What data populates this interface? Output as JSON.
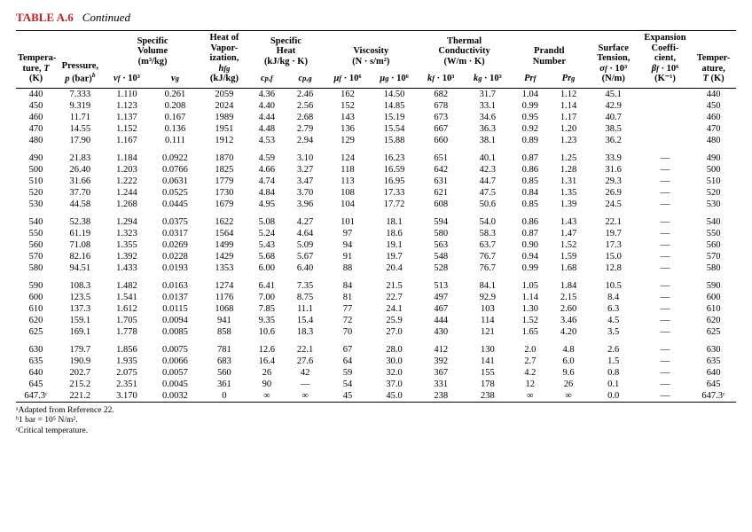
{
  "title": {
    "label": "TABLE A.6",
    "suffix": "Continued"
  },
  "header": {
    "row1": {
      "temp": "Tempera-\nture, T\n(K)",
      "pressure": "Pressure,\np (bar)ᵇ",
      "specvol": "Specific\nVolume\n(m³/kg)",
      "hvap": "Heat of\nVapor-\nization,\nh_fg\n(kJ/kg)",
      "spheat": "Specific\nHeat\n(kJ/kg · K)",
      "visc": "Viscosity\n(N · s/m²)",
      "thermc": "Thermal\nConductivity\n(W/m · K)",
      "prandtl": "Prandtl\nNumber",
      "surft": "Surface\nTension,\nσ_f · 10³\n(N/m)",
      "expan": "Expansion\nCoeffi-\ncient,\nβ_f · 10⁶\n(K⁻¹)",
      "temp2": "Temper-\nature,\nT (K)"
    },
    "row2": {
      "vf": "v_f · 10³",
      "vg": "v_g",
      "cpf": "c_p,f",
      "cpg": "c_p,g",
      "muf": "μ_f · 10⁶",
      "mug": "μ_g · 10⁶",
      "kf": "k_f · 10³",
      "kg": "k_g · 10³",
      "prf": "Pr_f",
      "prg": "Pr_g"
    }
  },
  "rows": [
    [
      "440",
      "7.333",
      "1.110",
      "0.261",
      "2059",
      "4.36",
      "2.46",
      "162",
      "14.50",
      "682",
      "31.7",
      "1.04",
      "1.12",
      "45.1",
      "",
      "440"
    ],
    [
      "450",
      "9.319",
      "1.123",
      "0.208",
      "2024",
      "4.40",
      "2.56",
      "152",
      "14.85",
      "678",
      "33.1",
      "0.99",
      "1.14",
      "42.9",
      "",
      "450"
    ],
    [
      "460",
      "11.71",
      "1.137",
      "0.167",
      "1989",
      "4.44",
      "2.68",
      "143",
      "15.19",
      "673",
      "34.6",
      "0.95",
      "1.17",
      "40.7",
      "",
      "460"
    ],
    [
      "470",
      "14.55",
      "1.152",
      "0.136",
      "1951",
      "4.48",
      "2.79",
      "136",
      "15.54",
      "667",
      "36.3",
      "0.92",
      "1.20",
      "38.5",
      "",
      "470"
    ],
    [
      "480",
      "17.90",
      "1.167",
      "0.111",
      "1912",
      "4.53",
      "2.94",
      "129",
      "15.88",
      "660",
      "38.1",
      "0.89",
      "1.23",
      "36.2",
      "",
      "480"
    ],
    [
      "490",
      "21.83",
      "1.184",
      "0.0922",
      "1870",
      "4.59",
      "3.10",
      "124",
      "16.23",
      "651",
      "40.1",
      "0.87",
      "1.25",
      "33.9",
      "—",
      "490"
    ],
    [
      "500",
      "26.40",
      "1.203",
      "0.0766",
      "1825",
      "4.66",
      "3.27",
      "118",
      "16.59",
      "642",
      "42.3",
      "0.86",
      "1.28",
      "31.6",
      "—",
      "500"
    ],
    [
      "510",
      "31.66",
      "1.222",
      "0.0631",
      "1779",
      "4.74",
      "3.47",
      "113",
      "16.95",
      "631",
      "44.7",
      "0.85",
      "1.31",
      "29.3",
      "—",
      "510"
    ],
    [
      "520",
      "37.70",
      "1.244",
      "0.0525",
      "1730",
      "4.84",
      "3.70",
      "108",
      "17.33",
      "621",
      "47.5",
      "0.84",
      "1.35",
      "26.9",
      "—",
      "520"
    ],
    [
      "530",
      "44.58",
      "1.268",
      "0.0445",
      "1679",
      "4.95",
      "3.96",
      "104",
      "17.72",
      "608",
      "50.6",
      "0.85",
      "1.39",
      "24.5",
      "—",
      "530"
    ],
    [
      "540",
      "52.38",
      "1.294",
      "0.0375",
      "1622",
      "5.08",
      "4.27",
      "101",
      "18.1",
      "594",
      "54.0",
      "0.86",
      "1.43",
      "22.1",
      "—",
      "540"
    ],
    [
      "550",
      "61.19",
      "1.323",
      "0.0317",
      "1564",
      "5.24",
      "4.64",
      "97",
      "18.6",
      "580",
      "58.3",
      "0.87",
      "1.47",
      "19.7",
      "—",
      "550"
    ],
    [
      "560",
      "71.08",
      "1.355",
      "0.0269",
      "1499",
      "5.43",
      "5.09",
      "94",
      "19.1",
      "563",
      "63.7",
      "0.90",
      "1.52",
      "17.3",
      "—",
      "560"
    ],
    [
      "570",
      "82.16",
      "1.392",
      "0.0228",
      "1429",
      "5.68",
      "5.67",
      "91",
      "19.7",
      "548",
      "76.7",
      "0.94",
      "1.59",
      "15.0",
      "—",
      "570"
    ],
    [
      "580",
      "94.51",
      "1.433",
      "0.0193",
      "1353",
      "6.00",
      "6.40",
      "88",
      "20.4",
      "528",
      "76.7",
      "0.99",
      "1.68",
      "12.8",
      "—",
      "580"
    ],
    [
      "590",
      "108.3",
      "1.482",
      "0.0163",
      "1274",
      "6.41",
      "7.35",
      "84",
      "21.5",
      "513",
      "84.1",
      "1.05",
      "1.84",
      "10.5",
      "—",
      "590"
    ],
    [
      "600",
      "123.5",
      "1.541",
      "0.0137",
      "1176",
      "7.00",
      "8.75",
      "81",
      "22.7",
      "497",
      "92.9",
      "1.14",
      "2.15",
      "8.4",
      "—",
      "600"
    ],
    [
      "610",
      "137.3",
      "1.612",
      "0.0115",
      "1068",
      "7.85",
      "11.1",
      "77",
      "24.1",
      "467",
      "103",
      "1.30",
      "2.60",
      "6.3",
      "—",
      "610"
    ],
    [
      "620",
      "159.1",
      "1.705",
      "0.0094",
      "941",
      "9.35",
      "15.4",
      "72",
      "25.9",
      "444",
      "114",
      "1.52",
      "3.46",
      "4.5",
      "—",
      "620"
    ],
    [
      "625",
      "169.1",
      "1.778",
      "0.0085",
      "858",
      "10.6",
      "18.3",
      "70",
      "27.0",
      "430",
      "121",
      "1.65",
      "4.20",
      "3.5",
      "—",
      "625"
    ],
    [
      "630",
      "179.7",
      "1.856",
      "0.0075",
      "781",
      "12.6",
      "22.1",
      "67",
      "28.0",
      "412",
      "130",
      "2.0",
      "4.8",
      "2.6",
      "—",
      "630"
    ],
    [
      "635",
      "190.9",
      "1.935",
      "0.0066",
      "683",
      "16.4",
      "27.6",
      "64",
      "30.0",
      "392",
      "141",
      "2.7",
      "6.0",
      "1.5",
      "—",
      "635"
    ],
    [
      "640",
      "202.7",
      "2.075",
      "0.0057",
      "560",
      "26",
      "42",
      "59",
      "32.0",
      "367",
      "155",
      "4.2",
      "9.6",
      "0.8",
      "—",
      "640"
    ],
    [
      "645",
      "215.2",
      "2.351",
      "0.0045",
      "361",
      "90",
      "—",
      "54",
      "37.0",
      "331",
      "178",
      "12",
      "26",
      "0.1",
      "—",
      "645"
    ],
    [
      "647.3ᶜ",
      "221.2",
      "3.170",
      "0.0032",
      "0",
      "∞",
      "∞",
      "45",
      "45.0",
      "238",
      "238",
      "∞",
      "∞",
      "0.0",
      "—",
      "647.3ᶜ"
    ]
  ],
  "groupBreaks": [
    5,
    10,
    15,
    20
  ],
  "footnotes": [
    "ᵃAdapted from Reference 22.",
    "ᵇ1 bar = 10⁵ N/m².",
    "ᶜCritical temperature."
  ]
}
